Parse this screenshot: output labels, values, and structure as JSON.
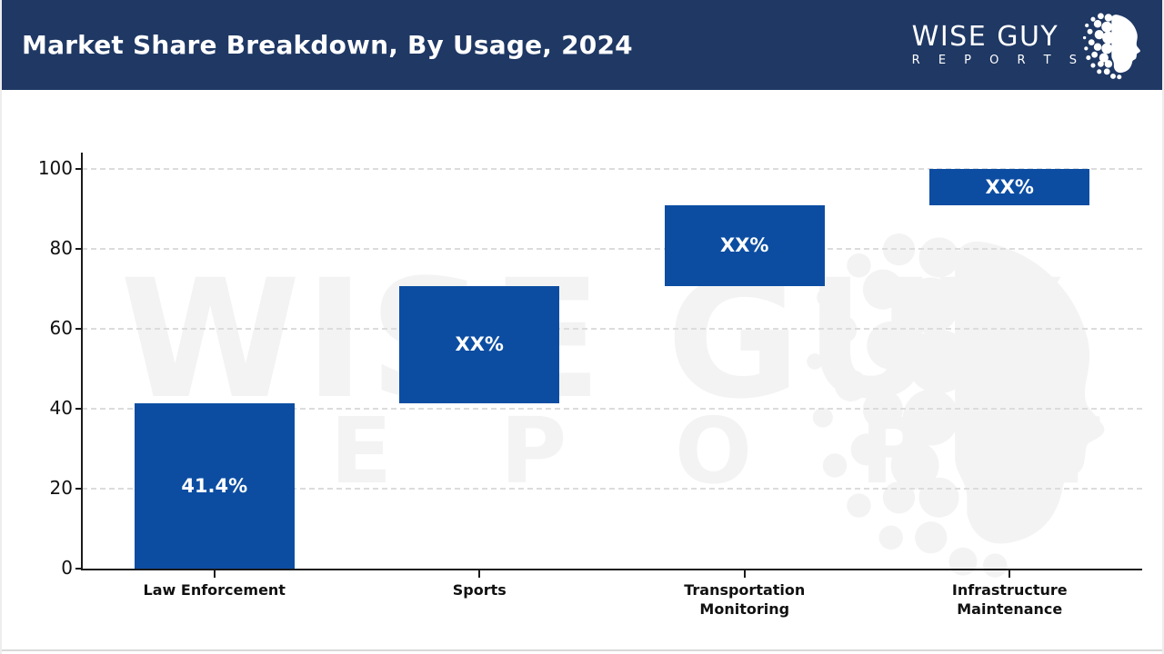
{
  "header": {
    "title": "Market Share Breakdown, By Usage, 2024",
    "logo": {
      "line1": "WISE GUY",
      "line2": "R E P O R T S"
    }
  },
  "watermark": {
    "line1": "WISE GUY",
    "line2": "R E P O R T S"
  },
  "colors": {
    "header_bg": "#1f3864",
    "bar": "#0c4da2",
    "grid": "#dcdcdc",
    "axis": "#1a1a1a",
    "value_label": "#ffffff",
    "watermark": "#f3f3f3"
  },
  "chart_data": {
    "type": "bar",
    "variant": "waterfall",
    "title": "Market Share Breakdown, By Usage, 2024",
    "xlabel": "",
    "ylabel": "",
    "ylim": [
      0,
      100
    ],
    "yticks": [
      0,
      20,
      40,
      60,
      80,
      100
    ],
    "grid": "horizontal-dashed",
    "legend": "none",
    "categories": [
      "Law Enforcement",
      "Sports",
      "Transportation Monitoring",
      "Infrastructure Maintenance"
    ],
    "segments": [
      {
        "category": "Law Enforcement",
        "start": 0,
        "end": 41.4,
        "label": "41.4%"
      },
      {
        "category": "Sports",
        "start": 41.4,
        "end": 70.7,
        "label": "XX%"
      },
      {
        "category": "Transportation Monitoring",
        "start": 70.7,
        "end": 90.9,
        "label": "XX%"
      },
      {
        "category": "Infrastructure Maintenance",
        "start": 90.9,
        "end": 100,
        "label": "XX%"
      }
    ]
  }
}
